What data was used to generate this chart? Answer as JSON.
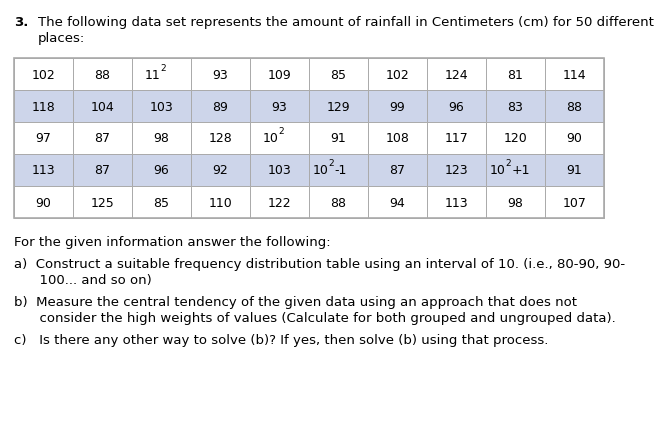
{
  "question_number": "3.",
  "question_line1": "The following data set represents the amount of rainfall in Centimeters (cm) for 50 different",
  "question_line2": "places:",
  "table_data": [
    [
      "102",
      "88",
      "11^2",
      "93",
      "109",
      "85",
      "102",
      "124",
      "81",
      "114"
    ],
    [
      "118",
      "104",
      "103",
      "89",
      "93",
      "129",
      "99",
      "96",
      "83",
      "88"
    ],
    [
      "97",
      "87",
      "98",
      "128",
      "10^2",
      "91",
      "108",
      "117",
      "120",
      "90"
    ],
    [
      "113",
      "87",
      "96",
      "92",
      "103",
      "10^2-1",
      "87",
      "123",
      "10^2+1",
      "91"
    ],
    [
      "90",
      "125",
      "85",
      "110",
      "122",
      "88",
      "94",
      "113",
      "98",
      "107"
    ]
  ],
  "row_colors": [
    "#ffffff",
    "#cdd5ea",
    "#ffffff",
    "#cdd5ea",
    "#ffffff"
  ],
  "border_color": "#aaaaaa",
  "text_color": "#000000",
  "background_color": "#ffffff",
  "intro_line": "For the given information answer the following:",
  "sub_a_line1": "a)  Construct a suitable frequency distribution table using an interval of 10. (i.e., 80-90, 90-",
  "sub_a_line2": "      100... and so on)",
  "sub_b_line1": "b)  Measure the central tendency of the given data using an approach that does not",
  "sub_b_line2": "      consider the high weights of values (Calculate for both grouped and ungrouped data).",
  "sub_c_line1": "c)   Is there any other way to solve (b)? If yes, then solve (b) using that process."
}
